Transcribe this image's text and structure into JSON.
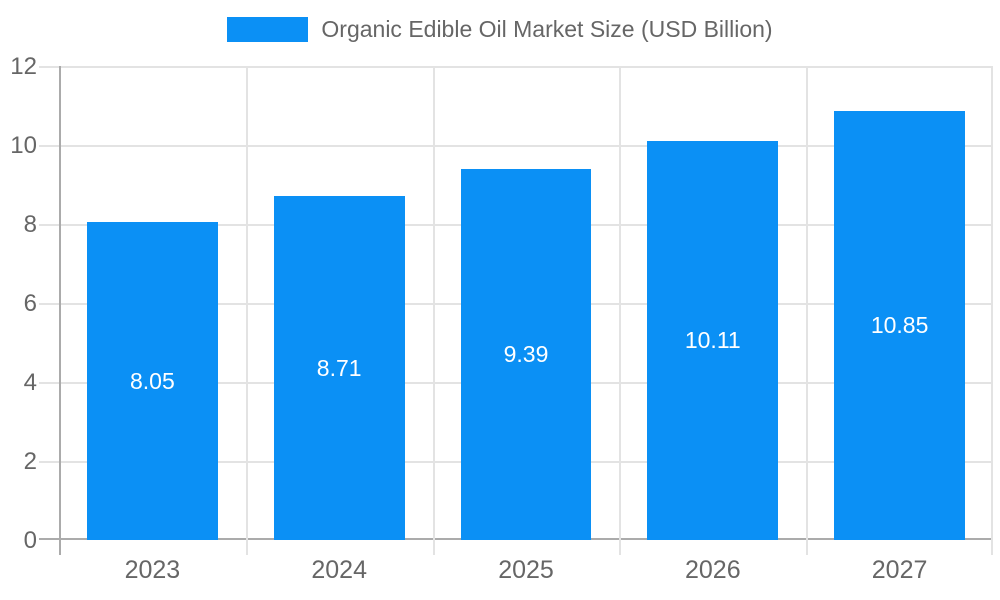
{
  "chart_data": {
    "type": "bar",
    "series_name": "Organic Edible Oil Market Size (USD Billion)",
    "categories": [
      "2023",
      "2024",
      "2025",
      "2026",
      "2027"
    ],
    "values": [
      8.05,
      8.71,
      9.39,
      10.11,
      10.85
    ],
    "value_decimals": 2,
    "ylim": [
      0,
      12
    ],
    "ytick_step": 2,
    "yticks": [
      0,
      2,
      4,
      6,
      8,
      10,
      12
    ],
    "grid": true,
    "legend_position": "top",
    "title": "",
    "xlabel": "",
    "ylabel": ""
  },
  "colors": {
    "bar": "#0b90f5",
    "grid": "#e3e3e3",
    "axis": "#ababab",
    "tick_text": "#666666",
    "legend_text": "#666666",
    "value_label_text": "#ffffff",
    "background": "#ffffff"
  }
}
